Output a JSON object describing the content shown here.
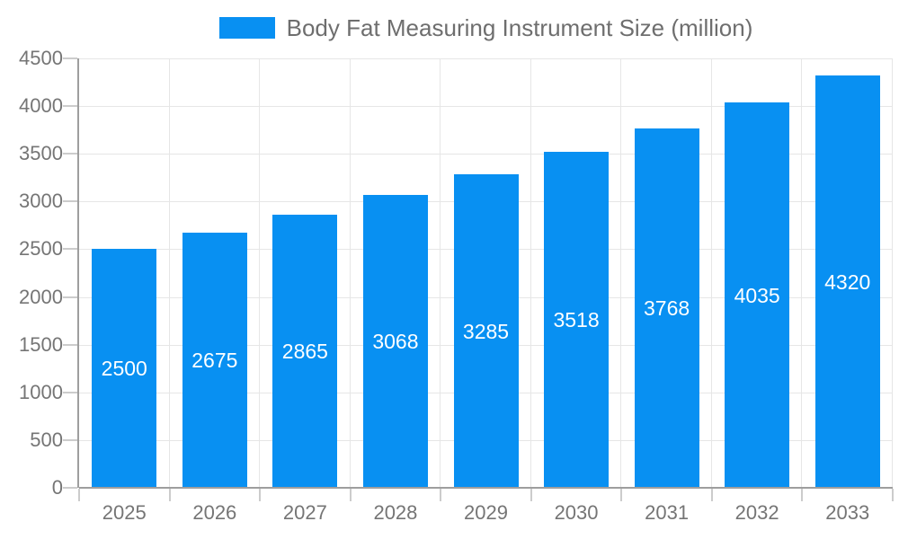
{
  "chart_data": {
    "type": "bar",
    "title": "Body Fat Measuring Instrument Size (million)",
    "categories": [
      "2025",
      "2026",
      "2027",
      "2028",
      "2029",
      "2030",
      "2031",
      "2032",
      "2033"
    ],
    "values": [
      2500,
      2675,
      2865,
      3068,
      3285,
      3518,
      3768,
      4035,
      4320
    ],
    "xlabel": "",
    "ylabel": "",
    "ylim": [
      0,
      4500
    ],
    "ytick_step": 500,
    "yticks": [
      "0",
      "500",
      "1000",
      "1500",
      "2000",
      "2500",
      "3000",
      "3500",
      "4000",
      "4500"
    ],
    "grid": true,
    "legend_position": "top",
    "value_labels": "inside-center"
  },
  "colors": {
    "bar": "#0890f2",
    "bar_label": "#ffffff",
    "grid": "#e6e6e6",
    "axis": "#9e9e9e",
    "tick": "#cccccc",
    "axis_label": "#757575",
    "title": "#6e6e6e",
    "background": "#ffffff"
  }
}
